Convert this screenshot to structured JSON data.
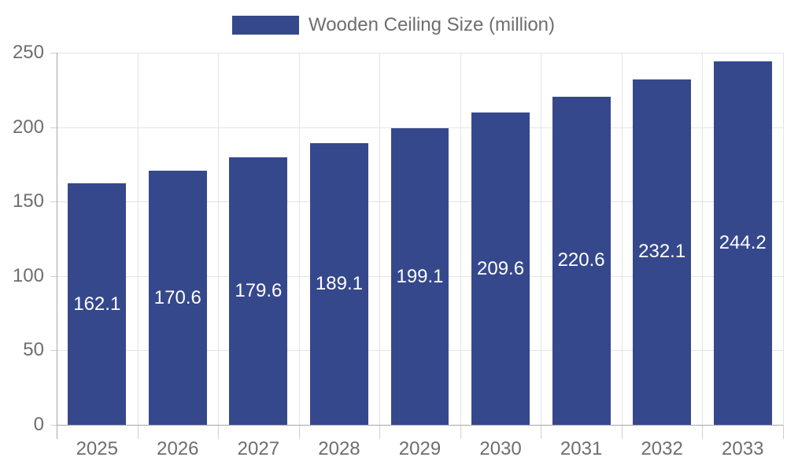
{
  "chart_data": {
    "type": "bar",
    "title": "Wooden Ceiling Size (million)",
    "legend": [
      "Wooden Ceiling Size (million)"
    ],
    "legend_position": "top-center",
    "categories": [
      "2025",
      "2026",
      "2027",
      "2028",
      "2029",
      "2030",
      "2031",
      "2032",
      "2033"
    ],
    "series": [
      {
        "name": "Wooden Ceiling Size (million)",
        "values": [
          162.1,
          170.6,
          179.6,
          189.1,
          199.1,
          209.6,
          220.6,
          232.1,
          244.2
        ]
      }
    ],
    "xlabel": "",
    "ylabel": "",
    "ylim": [
      0,
      250
    ],
    "yticks": [
      0,
      50,
      100,
      150,
      200,
      250
    ],
    "grid": true,
    "bar_labels_decimals": 1,
    "colors": {
      "bar": "#36488c",
      "bar_label": "#ffffff",
      "axis_text": "#6e6e6e",
      "gridline": "#e4e4e4",
      "axis_line": "#a6a6a6",
      "background": "#ffffff"
    }
  }
}
